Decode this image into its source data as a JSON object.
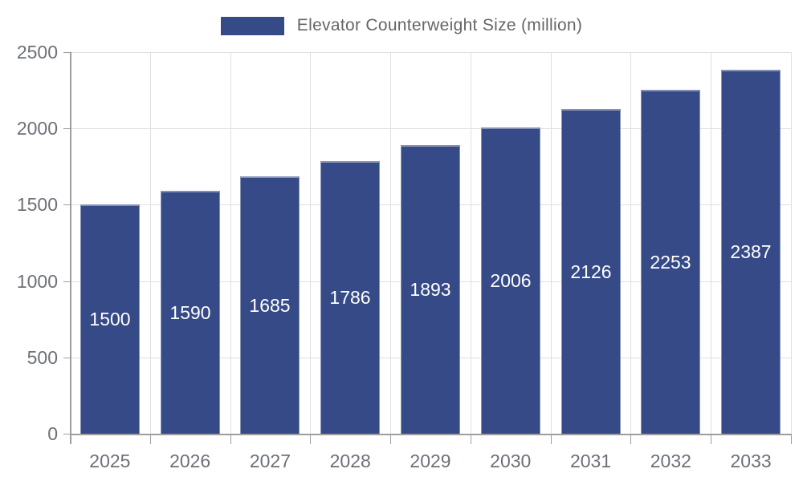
{
  "legend": {
    "label": "Elevator Counterweight Size (million)"
  },
  "chart_data": {
    "type": "bar",
    "title": "",
    "series_name": "Elevator Counterweight Size (million)",
    "categories": [
      "2025",
      "2026",
      "2027",
      "2028",
      "2029",
      "2030",
      "2031",
      "2032",
      "2033"
    ],
    "values": [
      1500,
      1590,
      1685,
      1786,
      1893,
      2006,
      2126,
      2253,
      2387
    ],
    "xlabel": "",
    "ylabel": "",
    "ylim": [
      0,
      2500
    ],
    "yticks": [
      0,
      500,
      1000,
      1500,
      2000,
      2500
    ],
    "grid": true,
    "legend_position": "top-center",
    "value_labels": "inside-center",
    "colors": {
      "bar": "#354a87",
      "bar_edge_highlight": "#8691b6",
      "value_label": "#ffffff",
      "grid": "#e0e0e0",
      "axis": "#9e9e9e",
      "tick_label": "#6e7079",
      "legend_text": "#666666",
      "background": "#ffffff"
    }
  }
}
